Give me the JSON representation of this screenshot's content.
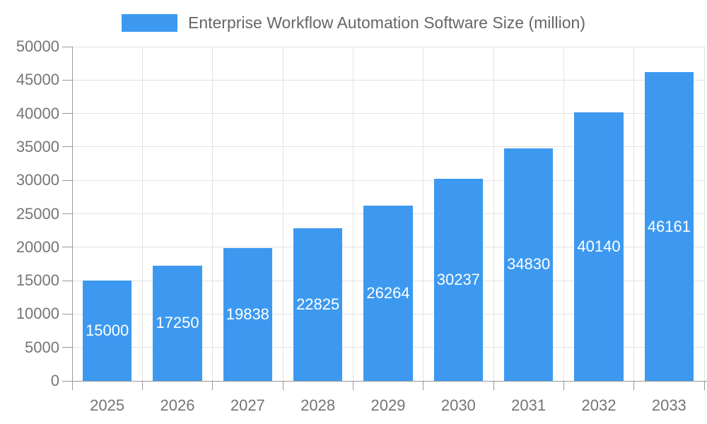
{
  "legend": {
    "label": "Enterprise Workflow Automation Software Size (million)"
  },
  "chart_data": {
    "type": "bar",
    "title": "Enterprise Workflow Automation Software Size (million)",
    "categories": [
      "2025",
      "2026",
      "2027",
      "2028",
      "2029",
      "2030",
      "2031",
      "2032",
      "2033"
    ],
    "values": [
      15000,
      17250,
      19838,
      22825,
      26264,
      30237,
      34830,
      40140,
      46161
    ],
    "xlabel": "",
    "ylabel": "",
    "ylim": [
      0,
      50000
    ],
    "ytick_step": 5000,
    "yticks": [
      0,
      5000,
      10000,
      15000,
      20000,
      25000,
      30000,
      35000,
      40000,
      45000,
      50000
    ],
    "grid": true,
    "legend_position": "top-center",
    "value_label_position": "inside-center"
  },
  "colors": {
    "bar": "#3D99F0",
    "axis_line": "#999999",
    "gridline": "#E2E2E2",
    "tick_label": "#757575",
    "legend_text": "#666666",
    "value_label": "#FFFFFF",
    "background": "#FFFFFF"
  }
}
